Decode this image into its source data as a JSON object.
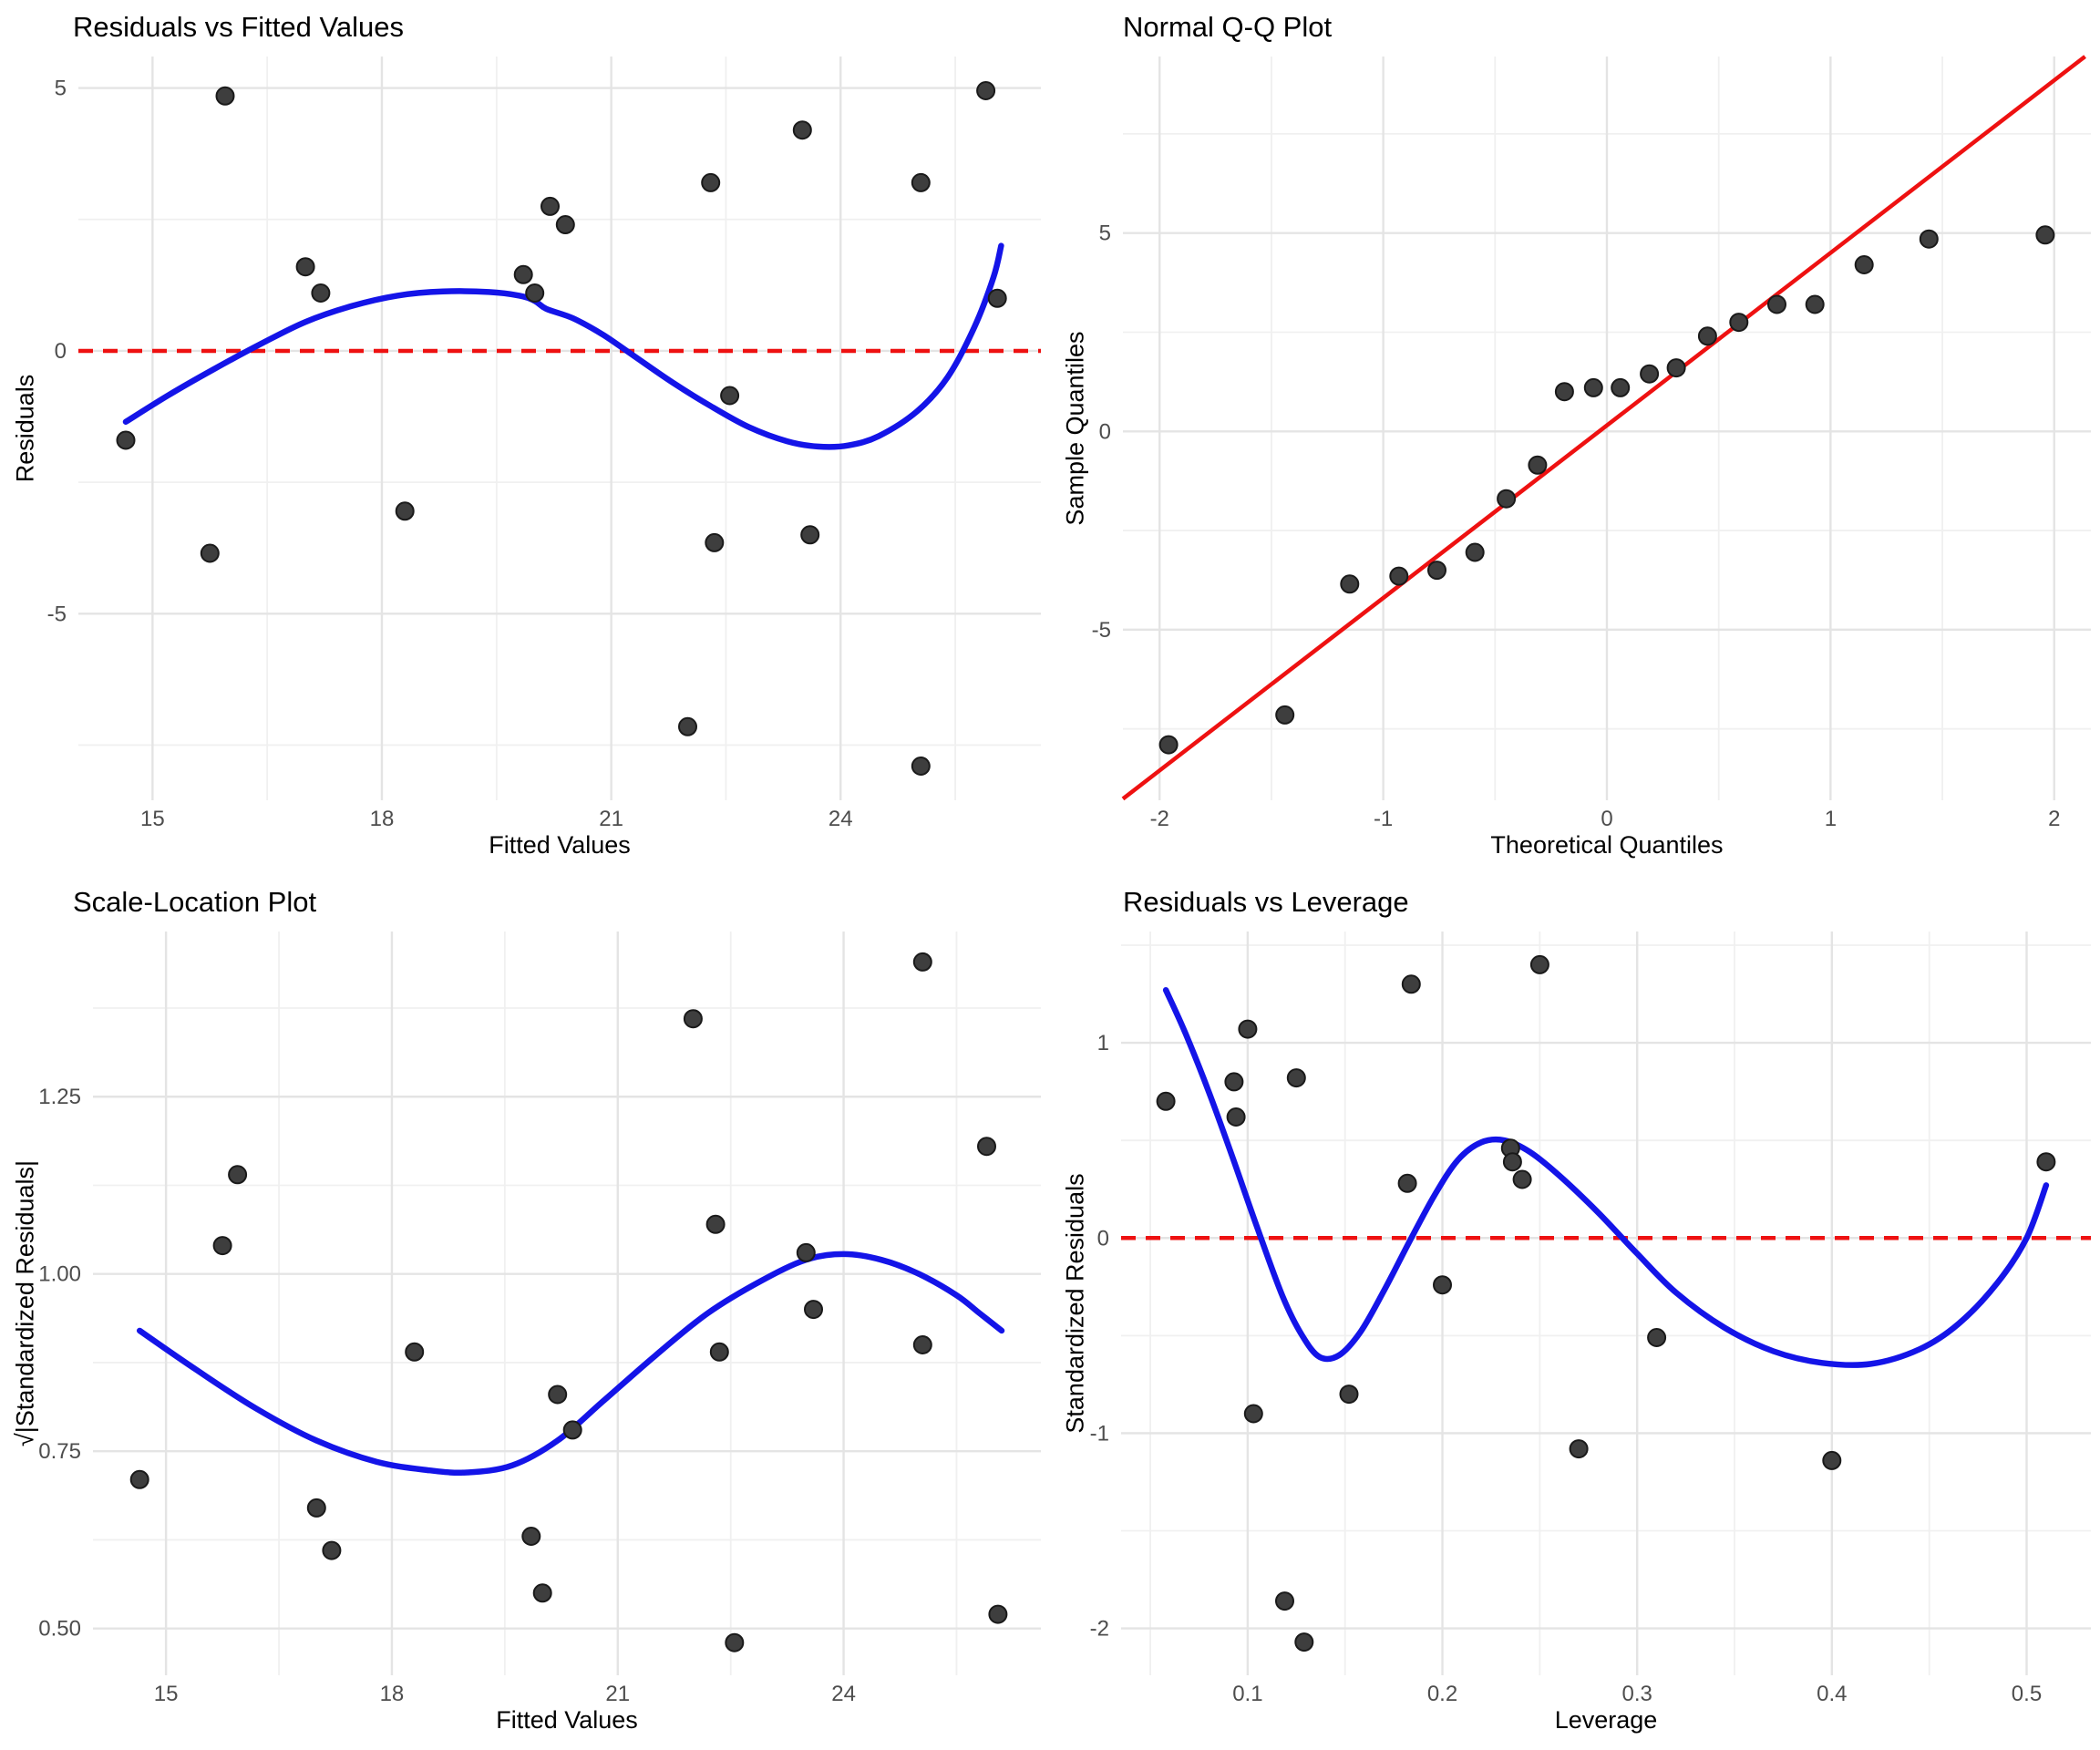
{
  "figure": {
    "background": "#FFFFFF",
    "colors": {
      "point_fill": "#3E3E3E",
      "point_stroke": "#1A1A1A",
      "smooth_line": "#1414E8",
      "reference_line": "#EE1111",
      "grid_major": "#E4E4E4",
      "grid_minor": "#F0F0F0",
      "tick_label": "#4D4D4D",
      "text": "#000000"
    }
  },
  "chart_data": [
    {
      "type": "scatter",
      "title": "Residuals vs Fitted Values",
      "xlabel": "Fitted Values",
      "ylabel": "Residuals",
      "xlim": [
        14.03,
        26.62
      ],
      "ylim": [
        -8.55,
        5.6
      ],
      "xticks": {
        "values": [
          15,
          18,
          21,
          24
        ],
        "labels": [
          "15",
          "18",
          "21",
          "24"
        ]
      },
      "yticks": {
        "values": [
          -5,
          0,
          5
        ],
        "labels": [
          "-5",
          "0",
          "5"
        ]
      },
      "xminor": [
        16.5,
        19.5,
        22.5,
        25.5
      ],
      "yminor": [
        -7.5,
        -2.5,
        2.5
      ],
      "hline": {
        "y": 0,
        "style": "dashed"
      },
      "abline": null,
      "points": [
        [
          14.65,
          -1.7
        ],
        [
          15.75,
          -3.85
        ],
        [
          15.95,
          4.85
        ],
        [
          17.0,
          1.6
        ],
        [
          17.2,
          1.1
        ],
        [
          18.3,
          -3.05
        ],
        [
          19.85,
          1.45
        ],
        [
          20.0,
          1.1
        ],
        [
          20.2,
          2.75
        ],
        [
          20.4,
          2.4
        ],
        [
          22.0,
          -7.15
        ],
        [
          22.3,
          3.2
        ],
        [
          22.35,
          -3.65
        ],
        [
          22.55,
          -0.85
        ],
        [
          23.5,
          4.2
        ],
        [
          23.6,
          -3.5
        ],
        [
          25.05,
          3.2
        ],
        [
          25.05,
          -7.9
        ],
        [
          25.9,
          4.95
        ],
        [
          26.05,
          1.0
        ]
      ],
      "smooth": [
        [
          14.65,
          -1.35
        ],
        [
          15.2,
          -0.85
        ],
        [
          15.8,
          -0.35
        ],
        [
          16.4,
          0.12
        ],
        [
          17.0,
          0.55
        ],
        [
          17.6,
          0.85
        ],
        [
          18.2,
          1.05
        ],
        [
          18.8,
          1.13
        ],
        [
          19.4,
          1.12
        ],
        [
          19.8,
          1.05
        ],
        [
          20.0,
          0.95
        ],
        [
          20.15,
          0.8
        ],
        [
          20.5,
          0.62
        ],
        [
          20.9,
          0.3
        ],
        [
          21.3,
          -0.1
        ],
        [
          21.8,
          -0.6
        ],
        [
          22.3,
          -1.05
        ],
        [
          22.8,
          -1.45
        ],
        [
          23.3,
          -1.72
        ],
        [
          23.7,
          -1.82
        ],
        [
          24.1,
          -1.8
        ],
        [
          24.5,
          -1.62
        ],
        [
          25.0,
          -1.15
        ],
        [
          25.4,
          -0.5
        ],
        [
          25.75,
          0.45
        ],
        [
          26.0,
          1.4
        ],
        [
          26.1,
          2.0
        ]
      ]
    },
    {
      "type": "scatter",
      "title": "Normal Q-Q Plot",
      "xlabel": "Theoretical Quantiles",
      "ylabel": "Sample Quantiles",
      "xlim": [
        -2.164,
        2.164
      ],
      "ylim": [
        -9.3,
        9.45
      ],
      "xticks": {
        "values": [
          -2,
          -1,
          0,
          1,
          2
        ],
        "labels": [
          "-2",
          "-1",
          "0",
          "1",
          "2"
        ]
      },
      "yticks": {
        "values": [
          -5,
          0,
          5
        ],
        "labels": [
          "-5",
          "0",
          "5"
        ]
      },
      "xminor": [
        -1.5,
        -0.5,
        0.5,
        1.5
      ],
      "yminor": [
        -7.5,
        -2.5,
        2.5,
        7.5
      ],
      "hline": null,
      "abline": {
        "slope": 4.35,
        "intercept": 0.15
      },
      "points": [
        [
          -1.96,
          -7.9
        ],
        [
          -1.44,
          -7.15
        ],
        [
          -1.15,
          -3.85
        ],
        [
          -0.93,
          -3.65
        ],
        [
          -0.76,
          -3.5
        ],
        [
          -0.59,
          -3.05
        ],
        [
          -0.45,
          -1.7
        ],
        [
          -0.31,
          -0.85
        ],
        [
          -0.19,
          1.0
        ],
        [
          -0.06,
          1.1
        ],
        [
          0.06,
          1.1
        ],
        [
          0.19,
          1.45
        ],
        [
          0.31,
          1.6
        ],
        [
          0.45,
          2.4
        ],
        [
          0.59,
          2.75
        ],
        [
          0.76,
          3.2
        ],
        [
          0.93,
          3.2
        ],
        [
          1.15,
          4.2
        ],
        [
          1.44,
          4.85
        ],
        [
          1.96,
          4.95
        ]
      ],
      "smooth": null
    },
    {
      "type": "scatter",
      "title": "Scale-Location Plot",
      "xlabel": "Fitted Values",
      "ylabel": "√|Standardized Residuals|",
      "xlim": [
        14.03,
        26.62
      ],
      "ylim": [
        0.434,
        1.483
      ],
      "xticks": {
        "values": [
          15,
          18,
          21,
          24
        ],
        "labels": [
          "15",
          "18",
          "21",
          "24"
        ]
      },
      "yticks": {
        "values": [
          0.5,
          0.75,
          1.0,
          1.25
        ],
        "labels": [
          "0.50",
          "0.75",
          "1.00",
          "1.25"
        ]
      },
      "xminor": [
        16.5,
        19.5,
        22.5,
        25.5
      ],
      "yminor": [
        0.625,
        0.875,
        1.125,
        1.375
      ],
      "hline": null,
      "abline": null,
      "points": [
        [
          14.65,
          0.71
        ],
        [
          15.75,
          1.04
        ],
        [
          15.95,
          1.14
        ],
        [
          17.0,
          0.67
        ],
        [
          17.2,
          0.61
        ],
        [
          18.3,
          0.89
        ],
        [
          19.85,
          0.63
        ],
        [
          20.0,
          0.55
        ],
        [
          20.2,
          0.83
        ],
        [
          20.4,
          0.78
        ],
        [
          22.0,
          1.36
        ],
        [
          22.3,
          1.07
        ],
        [
          22.35,
          0.89
        ],
        [
          22.55,
          0.48
        ],
        [
          23.5,
          1.03
        ],
        [
          23.6,
          0.95
        ],
        [
          25.05,
          1.44
        ],
        [
          25.05,
          0.9
        ],
        [
          25.9,
          1.18
        ],
        [
          26.05,
          0.52
        ]
      ],
      "smooth": [
        [
          14.65,
          0.92
        ],
        [
          15.4,
          0.865
        ],
        [
          16.2,
          0.81
        ],
        [
          17.0,
          0.765
        ],
        [
          17.8,
          0.735
        ],
        [
          18.5,
          0.723
        ],
        [
          19.0,
          0.72
        ],
        [
          19.6,
          0.73
        ],
        [
          20.2,
          0.765
        ],
        [
          20.8,
          0.82
        ],
        [
          21.5,
          0.885
        ],
        [
          22.2,
          0.945
        ],
        [
          22.9,
          0.99
        ],
        [
          23.5,
          1.02
        ],
        [
          24.0,
          1.028
        ],
        [
          24.5,
          1.02
        ],
        [
          25.0,
          1.0
        ],
        [
          25.5,
          0.97
        ],
        [
          25.8,
          0.945
        ],
        [
          26.1,
          0.92
        ]
      ]
    },
    {
      "type": "scatter",
      "title": "Residuals vs Leverage",
      "xlabel": "Leverage",
      "ylabel": "Standardized Residuals",
      "xlim": [
        0.035,
        0.533
      ],
      "ylim": [
        -2.24,
        1.57
      ],
      "xticks": {
        "values": [
          0.1,
          0.2,
          0.3,
          0.4,
          0.5
        ],
        "labels": [
          "0.1",
          "0.2",
          "0.3",
          "0.4",
          "0.5"
        ]
      },
      "yticks": {
        "values": [
          -2,
          -1,
          0,
          1
        ],
        "labels": [
          "-2",
          "-1",
          "0",
          "1"
        ]
      },
      "xminor": [
        0.05,
        0.15,
        0.25,
        0.35,
        0.45
      ],
      "yminor": [
        -1.5,
        -0.5,
        0.5,
        1.5
      ],
      "hline": {
        "y": 0,
        "style": "dashed"
      },
      "abline": null,
      "points": [
        [
          0.058,
          0.7
        ],
        [
          0.093,
          0.8
        ],
        [
          0.094,
          0.62
        ],
        [
          0.1,
          1.07
        ],
        [
          0.103,
          -0.9
        ],
        [
          0.119,
          -1.86
        ],
        [
          0.125,
          0.82
        ],
        [
          0.129,
          -2.07
        ],
        [
          0.152,
          -0.8
        ],
        [
          0.182,
          0.28
        ],
        [
          0.184,
          1.3
        ],
        [
          0.2,
          -0.24
        ],
        [
          0.235,
          0.46
        ],
        [
          0.236,
          0.39
        ],
        [
          0.241,
          0.3
        ],
        [
          0.25,
          1.4
        ],
        [
          0.27,
          -1.08
        ],
        [
          0.31,
          -0.51
        ],
        [
          0.4,
          -1.14
        ],
        [
          0.51,
          0.39
        ]
      ],
      "smooth": [
        [
          0.058,
          1.27
        ],
        [
          0.068,
          1.05
        ],
        [
          0.08,
          0.75
        ],
        [
          0.092,
          0.42
        ],
        [
          0.105,
          0.05
        ],
        [
          0.118,
          -0.3
        ],
        [
          0.128,
          -0.5
        ],
        [
          0.137,
          -0.61
        ],
        [
          0.147,
          -0.6
        ],
        [
          0.158,
          -0.48
        ],
        [
          0.17,
          -0.27
        ],
        [
          0.183,
          -0.02
        ],
        [
          0.196,
          0.22
        ],
        [
          0.208,
          0.4
        ],
        [
          0.22,
          0.49
        ],
        [
          0.232,
          0.5
        ],
        [
          0.245,
          0.44
        ],
        [
          0.26,
          0.32
        ],
        [
          0.28,
          0.13
        ],
        [
          0.3,
          -0.08
        ],
        [
          0.32,
          -0.28
        ],
        [
          0.345,
          -0.46
        ],
        [
          0.37,
          -0.58
        ],
        [
          0.395,
          -0.64
        ],
        [
          0.42,
          -0.645
        ],
        [
          0.445,
          -0.57
        ],
        [
          0.465,
          -0.44
        ],
        [
          0.485,
          -0.23
        ],
        [
          0.5,
          0.0
        ],
        [
          0.51,
          0.27
        ]
      ]
    }
  ]
}
